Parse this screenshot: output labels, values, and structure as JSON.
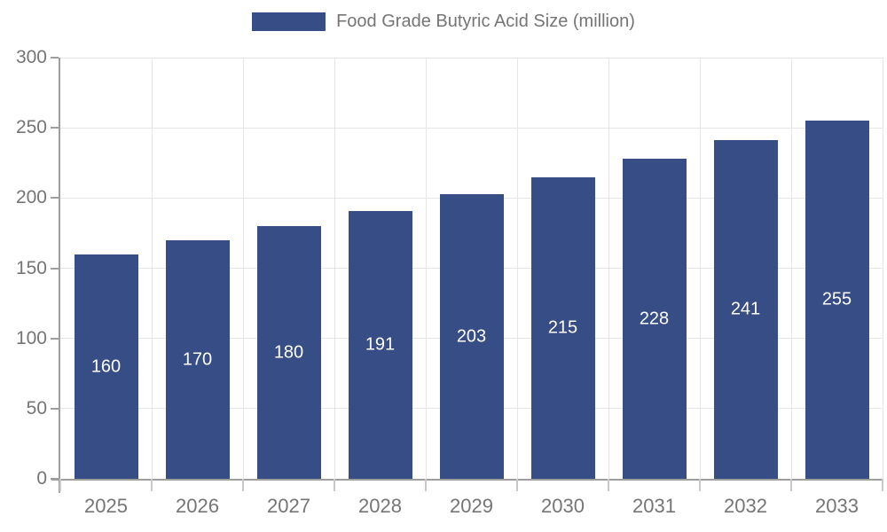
{
  "legend": {
    "label": "Food Grade Butyric Acid Size (million)",
    "swatch_color": "#374d85"
  },
  "chart_data": {
    "type": "bar",
    "title": "Food Grade Butyric Acid Size (million)",
    "categories": [
      "2025",
      "2026",
      "2027",
      "2028",
      "2029",
      "2030",
      "2031",
      "2032",
      "2033"
    ],
    "values": [
      160,
      170,
      180,
      191,
      203,
      215,
      228,
      241,
      255
    ],
    "xlabel": "",
    "ylabel": "",
    "ylim": [
      0,
      300
    ],
    "yticks": [
      0,
      50,
      100,
      150,
      200,
      250,
      300
    ],
    "grid": true,
    "legend_position": "top",
    "bar_color": "#374d85",
    "bar_label_color": "#ffffff",
    "axis_text_color": "#757575"
  }
}
